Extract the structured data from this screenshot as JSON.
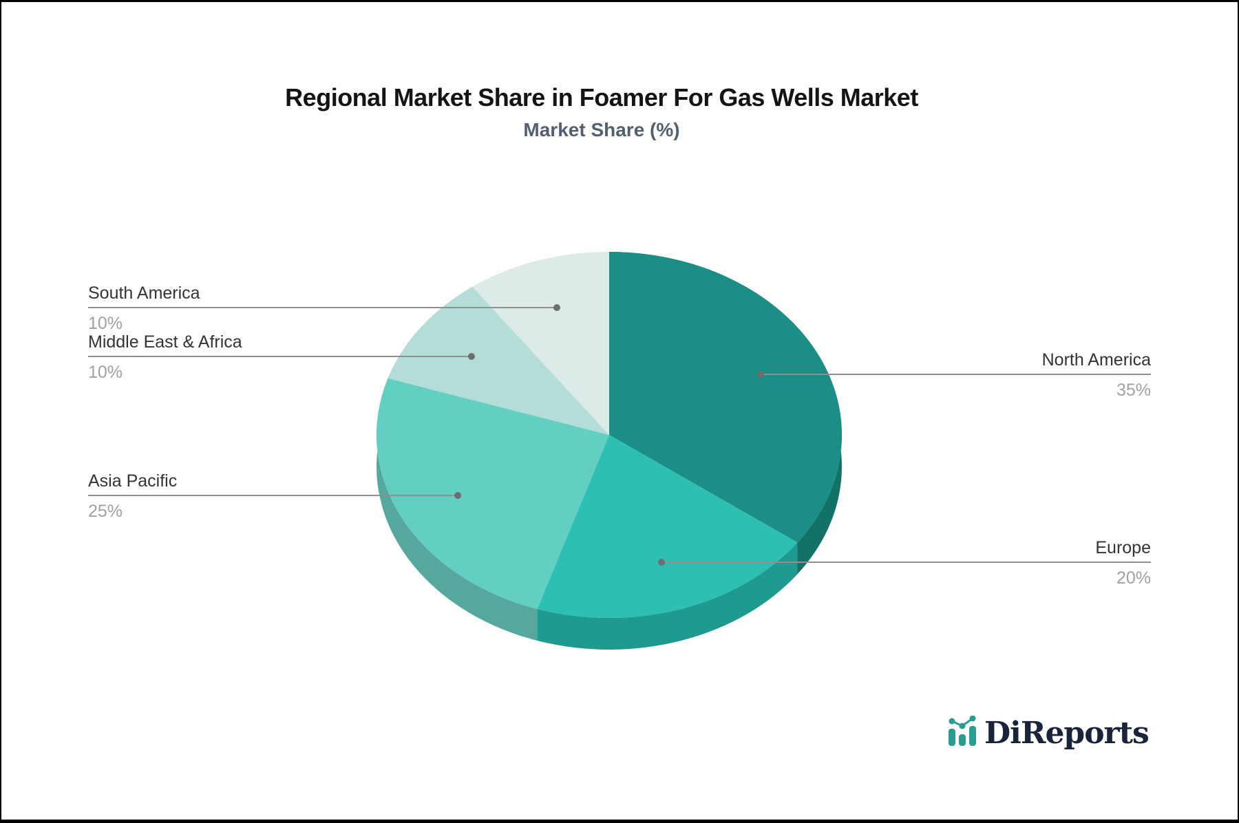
{
  "title": {
    "text": "Regional Market Share in Foamer For Gas Wells Market",
    "color": "#141414"
  },
  "subtitle": {
    "text": "Market Share (%)",
    "color": "#525f6e"
  },
  "chart_data": {
    "type": "pie",
    "style": "3d",
    "title": "Regional Market Share in Foamer For Gas Wells Market",
    "subtitle": "Market Share (%)",
    "unit": "%",
    "start_angle_deg": 0,
    "direction": "clockwise",
    "legend_position": "callout-labels",
    "categories": [
      "North America",
      "Europe",
      "Asia Pacific",
      "Middle East & Africa",
      "South America"
    ],
    "values": [
      35,
      20,
      25,
      10,
      10
    ],
    "value_labels": [
      "35%",
      "20%",
      "25%",
      "10%",
      "10%"
    ],
    "colors": [
      "#1b8e85",
      "#2dbfb2",
      "#63cec2",
      "#b4ddd7",
      "#dcebe8"
    ],
    "depth_colors": [
      "#127268",
      "#1f9a8e",
      "#56a89f",
      "#93c6bf",
      "#c3ded9"
    ],
    "label_sides": [
      "right",
      "right",
      "left",
      "left",
      "left"
    ],
    "callout_style": {
      "line_color": "#909090",
      "dot_color": "#6e6e6e",
      "name_color": "#333333",
      "pct_color": "#a0a0a0"
    }
  },
  "branding": {
    "logo_text": "DiReports",
    "logo_text_color": "#192339",
    "icon_color": "#2a9d92",
    "icon_name": "bar-chart-trend-icon"
  }
}
